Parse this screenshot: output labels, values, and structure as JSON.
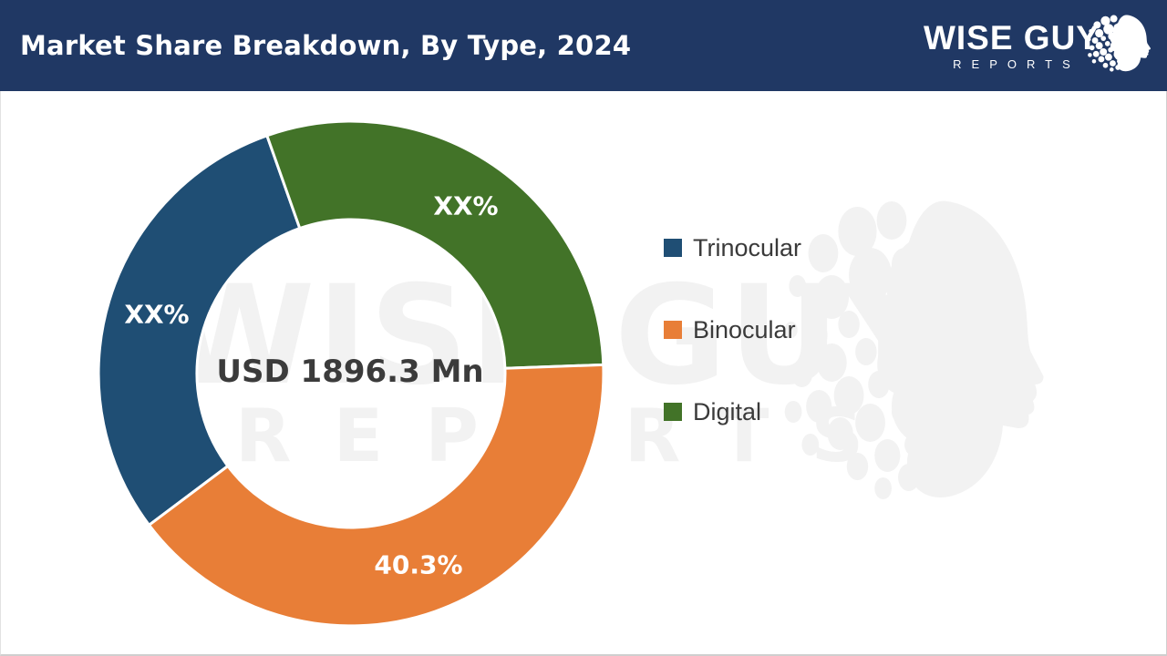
{
  "header": {
    "title": "Market Share Breakdown, By Type, 2024",
    "bg_color": "#203864",
    "logo": {
      "line1": "WISE GUY",
      "line2": "REPORTS"
    }
  },
  "watermark": {
    "line1": "WISE GUY",
    "line2": "REPORTS"
  },
  "chart_data": {
    "type": "pie",
    "subtype": "donut",
    "title": "Market Share Breakdown, By Type, 2024",
    "center_label": "USD 1896.3 Mn",
    "categories": [
      "Trinocular",
      "Binocular",
      "Digital"
    ],
    "values": [
      29.85,
      40.3,
      29.85
    ],
    "slice_labels": [
      "XX%",
      "40.3%",
      "XX%"
    ],
    "colors": [
      "#1F4E74",
      "#E87E37",
      "#427328"
    ],
    "label_color": "#FFFFFF",
    "hole_ratio": 0.61,
    "start_angle_deg": 233.1,
    "draw_order": [
      0,
      2,
      1
    ],
    "legend_position": "right",
    "gridlines": false
  }
}
